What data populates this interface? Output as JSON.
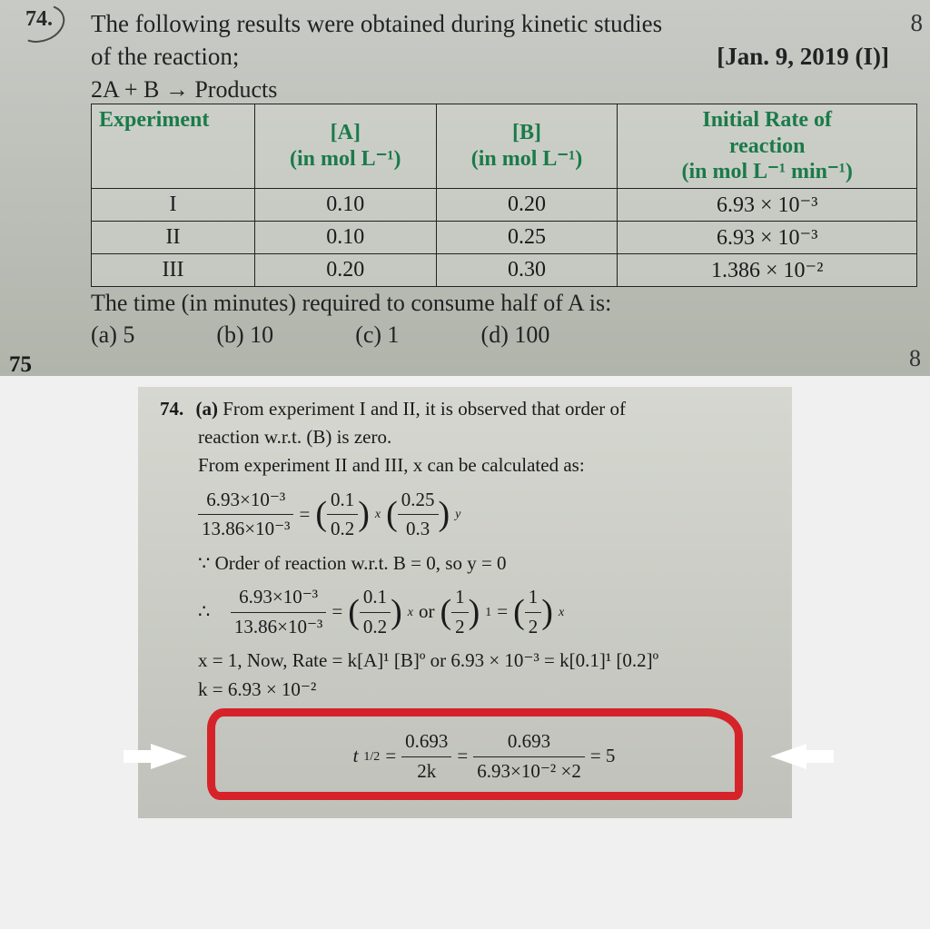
{
  "question": {
    "number": "74.",
    "text_line1": "The following results were obtained during kinetic studies",
    "text_line2_left": "of the reaction;",
    "exam_ref": "[Jan. 9, 2019 (I)]",
    "side_mark_top": "8",
    "reaction": "2A + B → Products",
    "follow_text": "The time (in minutes) required to consume half of A is:",
    "next_q": "75",
    "side_mark_bottom": "8"
  },
  "table": {
    "headers": {
      "exp": "Experiment",
      "a_line1": "[A]",
      "a_line2": "(in mol L⁻¹)",
      "b_line1": "[B]",
      "b_line2": "(in mol L⁻¹)",
      "rate_line1": "Initial Rate of",
      "rate_line2": "reaction",
      "rate_line3": "(in mol L⁻¹ min⁻¹)"
    },
    "rows": [
      {
        "exp": "I",
        "a": "0.10",
        "b": "0.20",
        "rate": "6.93 × 10⁻³"
      },
      {
        "exp": "II",
        "a": "0.10",
        "b": "0.25",
        "rate": "6.93 × 10⁻³"
      },
      {
        "exp": "III",
        "a": "0.20",
        "b": "0.30",
        "rate": "1.386 × 10⁻²"
      }
    ]
  },
  "options": {
    "a": "(a)  5",
    "b": "(b)  10",
    "c": "(c)  1",
    "d": "(d)  100"
  },
  "answer": {
    "num": "74.",
    "label": "(a)",
    "line1": "From experiment I and II, it is observed that order of",
    "line2": "reaction w.r.t. (B) is zero.",
    "line3": "From experiment II and III, x can be calculated as:",
    "frac1_num": "6.93×10⁻³",
    "frac1_den": "13.86×10⁻³",
    "pf1_num": "0.1",
    "pf1_den": "0.2",
    "pf1_exp": "x",
    "pf2_num": "0.25",
    "pf2_den": "0.3",
    "pf2_exp": "y",
    "because": "∵   Order of reaction w.r.t. B = 0, so y = 0",
    "therefore": "∴",
    "or_text": "or",
    "pf3_num": "1",
    "pf3_den": "2",
    "pf3_exp": "1",
    "pf4_exp": "x",
    "rate_eq": "x = 1, Now, Rate = k[A]¹ [B]º or 6.93 × 10⁻³ = k[0.1]¹ [0.2]º",
    "k_val": "k = 6.93 × 10⁻²",
    "half_t": "t",
    "half_sub": "1/2",
    "eq_sign": "=",
    "hf1_num": "0.693",
    "hf1_den": "2k",
    "hf2_num": "0.693",
    "hf2_den": "6.93×10⁻² ×2",
    "result": "= 5"
  },
  "colors": {
    "header_green": "#1a7a4a",
    "red_box": "#d6232a",
    "bg_top": "#c8cbc5",
    "bg_bottom": "#d5d7d0"
  }
}
